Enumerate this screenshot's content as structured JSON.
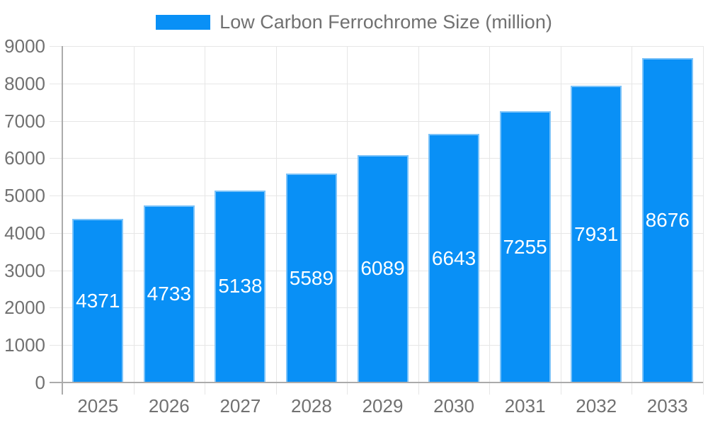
{
  "legend": {
    "label": "Low Carbon Ferrochrome Size (million)"
  },
  "chart_data": {
    "type": "bar",
    "title": "Low Carbon Ferrochrome Size (million)",
    "categories": [
      "2025",
      "2026",
      "2027",
      "2028",
      "2029",
      "2030",
      "2031",
      "2032",
      "2033"
    ],
    "values": [
      4371,
      4733,
      5138,
      5589,
      6089,
      6643,
      7255,
      7931,
      8676
    ],
    "xlabel": "",
    "ylabel": "",
    "ylim": [
      0,
      9000
    ],
    "ytick_step": 1000,
    "yticks": [
      0,
      1000,
      2000,
      3000,
      4000,
      5000,
      6000,
      7000,
      8000,
      9000
    ],
    "grid": true,
    "legend_position": "top",
    "bar_color": "#0990f6",
    "bar_border_color": "#7cc3f9",
    "value_label_color": "#ffffff",
    "axis_text_color": "#717171",
    "grid_color": "#e6e6e6",
    "axis_line_color": "#ababab"
  }
}
